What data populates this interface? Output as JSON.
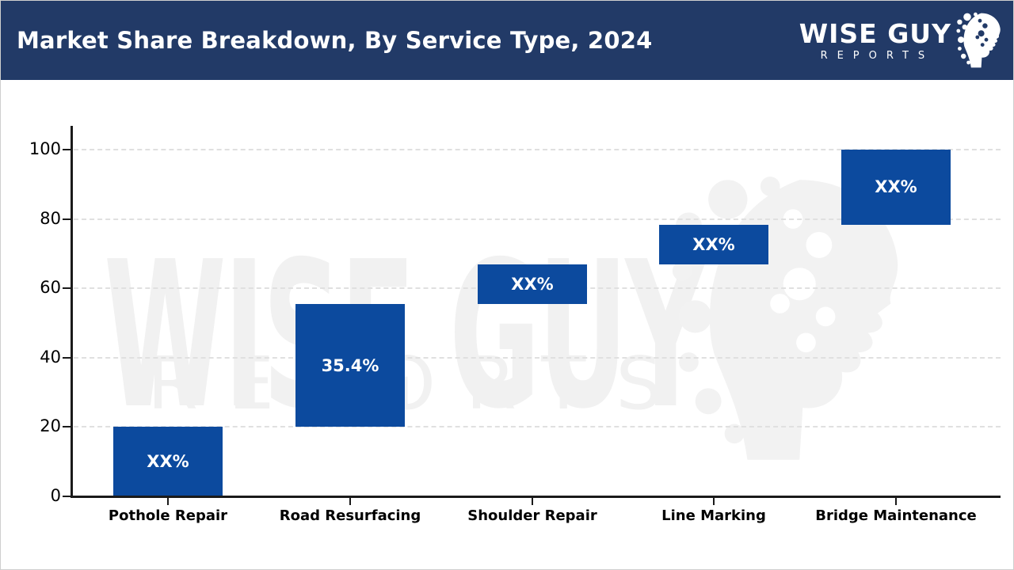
{
  "header": {
    "title": "Market Share Breakdown, By Service Type, 2024",
    "logo": {
      "line1": "WISE GUY",
      "line2": "REPORTS"
    }
  },
  "watermark": {
    "line1": "WISE GUY",
    "line2": "REPORTS"
  },
  "chart_data": {
    "type": "bar",
    "subtype": "waterfall",
    "title": "Market Share Breakdown, By Service Type, 2024",
    "categories": [
      "Pothole Repair",
      "Road Resurfacing",
      "Shoulder Repair",
      "Line Marking",
      "Bridge Maintenance"
    ],
    "bars": [
      {
        "category": "Pothole Repair",
        "start": 0,
        "end": 20,
        "label": "XX%"
      },
      {
        "category": "Road Resurfacing",
        "start": 20,
        "end": 55.4,
        "label": "35.4%"
      },
      {
        "category": "Shoulder Repair",
        "start": 55.4,
        "end": 67,
        "label": "XX%"
      },
      {
        "category": "Line Marking",
        "start": 67,
        "end": 78.4,
        "label": "XX%"
      },
      {
        "category": "Bridge Maintenance",
        "start": 78.4,
        "end": 100,
        "label": "XX%"
      }
    ],
    "ylim": [
      0,
      100
    ],
    "yticks": [
      0,
      20,
      40,
      60,
      80,
      100
    ],
    "grid": "horizontal-dashed",
    "legend": "none",
    "bar_color": "#0c4a9e",
    "bar_label_color": "#ffffff"
  },
  "colors": {
    "header_bg": "#223a67",
    "bar": "#0c4a9e",
    "gridline": "#e0e0e0",
    "axis": "#1a1a1a",
    "watermark": "#f1f1f1"
  }
}
